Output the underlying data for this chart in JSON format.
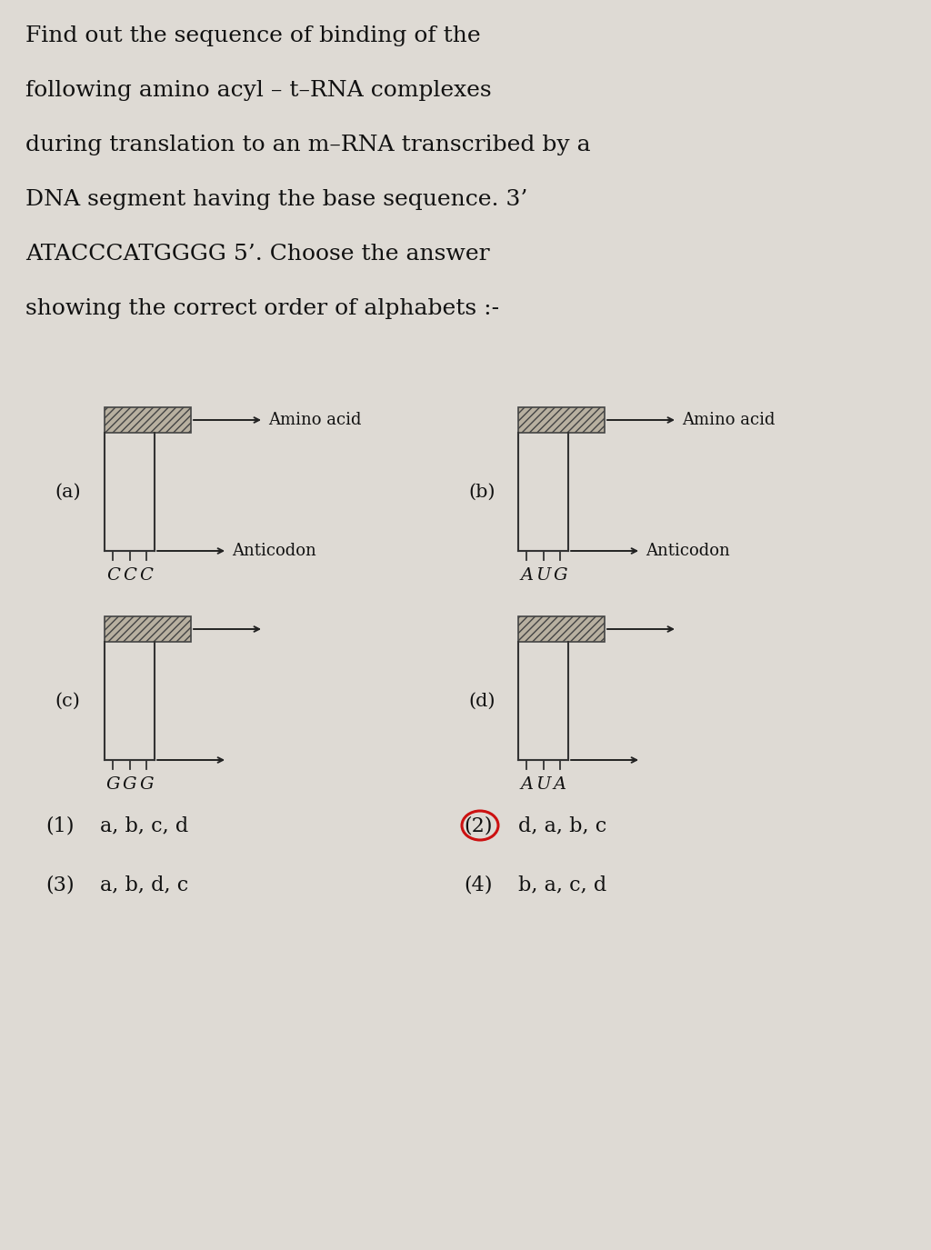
{
  "background_color": "#dedad4",
  "title_lines": [
    "Find out the sequence of binding of the",
    "following amino acyl – t–RNA complexes",
    "during translation to an m–RNA transcribed by a",
    "DNA segment having the base sequence. 3’",
    "ATACCCATGGGG 5’. Choose the answer",
    "showing the correct order of alphabets :-"
  ],
  "diagrams": [
    {
      "label": "(a)",
      "anticodon_letters": [
        "C",
        "C",
        "C"
      ],
      "col": 0,
      "row": 0,
      "has_amino_label": true,
      "has_anticodon_label": true
    },
    {
      "label": "(b)",
      "anticodon_letters": [
        "A",
        "U",
        "G"
      ],
      "col": 1,
      "row": 0,
      "has_amino_label": true,
      "has_anticodon_label": true
    },
    {
      "label": "(c)",
      "anticodon_letters": [
        "G",
        "G",
        "G"
      ],
      "col": 0,
      "row": 1,
      "has_amino_label": false,
      "has_anticodon_label": false
    },
    {
      "label": "(d)",
      "anticodon_letters": [
        "A",
        "U",
        "A"
      ],
      "col": 1,
      "row": 1,
      "has_amino_label": false,
      "has_anticodon_label": false
    }
  ],
  "options": [
    {
      "num": "(1)",
      "text": "a, b, c, d",
      "col": 0,
      "row": 0
    },
    {
      "num": "(2)",
      "text": "d, a, b, c",
      "col": 1,
      "row": 0,
      "circled": true
    },
    {
      "num": "(3)",
      "text": "a, b, d, c",
      "col": 0,
      "row": 1
    },
    {
      "num": "(4)",
      "text": "b, a, c, d",
      "col": 1,
      "row": 1
    }
  ],
  "text_color": "#111111",
  "box_fill": "#b8b0a0",
  "font_size_title": 18,
  "font_size_label": 15,
  "font_size_diagram": 13,
  "font_size_option": 16
}
